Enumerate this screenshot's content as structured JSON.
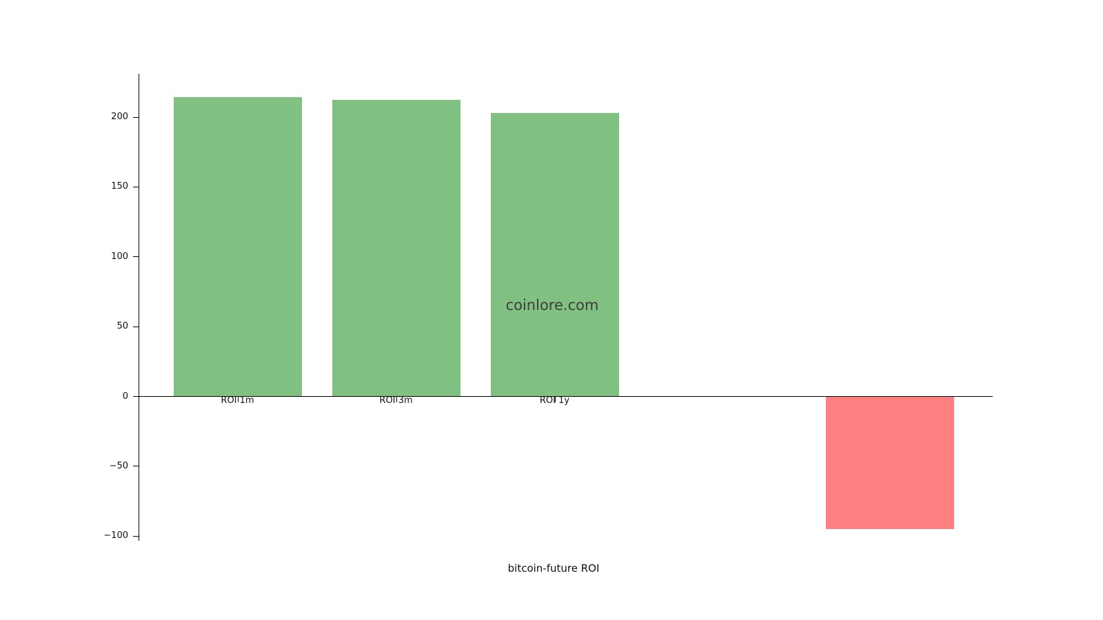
{
  "page": {
    "background": "#ffffff"
  },
  "watermark": {
    "text": "coinlore.com",
    "color": "#3d3d3d"
  },
  "chart_data": {
    "type": "bar",
    "title": "bitcoin-future ROI",
    "categories": [
      "ROI 1m",
      "ROI 3m",
      "ROI 1y",
      ""
    ],
    "values": [
      214,
      212,
      203,
      -95
    ],
    "bar_colors": [
      "#80c080",
      "#80c080",
      "#80c080",
      "#ff8080"
    ],
    "positive_color": "#80c080",
    "negative_color": "#ff8080",
    "xlabel": "",
    "ylabel": "",
    "y_ticks": [
      200,
      150,
      100,
      50,
      0,
      -50,
      -100
    ],
    "ylim": [
      -104,
      231
    ],
    "grid": false,
    "legend": false,
    "axis_color": "#000000",
    "tick_label_color": "#111111"
  }
}
